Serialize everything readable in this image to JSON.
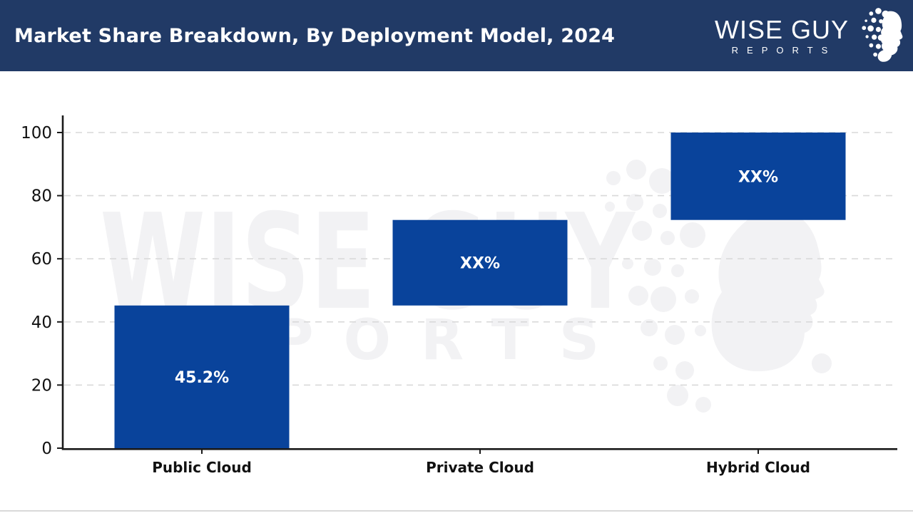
{
  "header": {
    "title": "Market Share Breakdown, By Deployment Model, 2024",
    "logo": {
      "line1": "WISE GUY",
      "line2": "REPORTS"
    }
  },
  "watermark": {
    "line1": "WISE GUY",
    "line2": "REPORTS"
  },
  "chart_data": {
    "type": "bar",
    "subtype": "floating-segment (waterfall-style market share)",
    "categories": [
      "Public Cloud",
      "Private Cloud",
      "Hybrid Cloud"
    ],
    "bars": [
      {
        "category": "Public Cloud",
        "start": 0,
        "end": 45.2,
        "label": "45.2%"
      },
      {
        "category": "Private Cloud",
        "start": 45.2,
        "end": 72.3,
        "label": "XX%"
      },
      {
        "category": "Hybrid Cloud",
        "start": 72.3,
        "end": 100,
        "label": "XX%"
      }
    ],
    "ylim": [
      0,
      100
    ],
    "yticks": [
      0,
      20,
      40,
      60,
      80,
      100
    ],
    "xlabel": "",
    "ylabel": "",
    "grid": "horizontal-dashed",
    "legend": "none",
    "bar_color": "#09439b",
    "bar_label_color": "#ffffff",
    "axis_color": "#1a1a1a",
    "grid_color": "#d9d9d9",
    "header_color": "#213a66",
    "watermark_color": "#f2f2f4"
  }
}
